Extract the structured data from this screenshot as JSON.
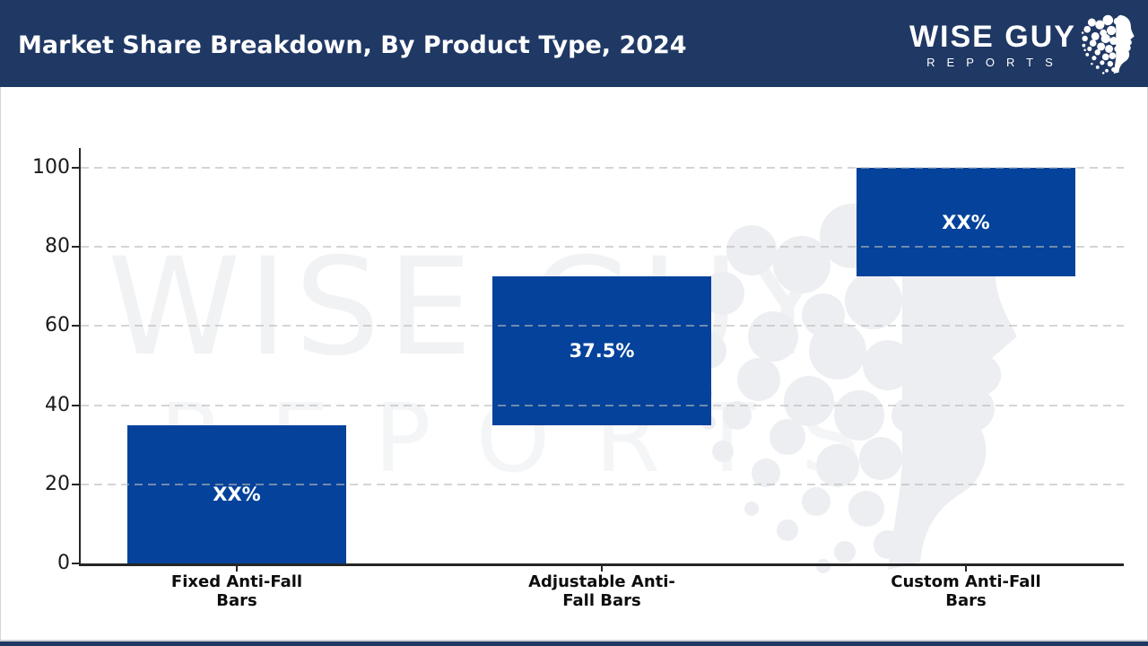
{
  "header": {
    "title": "Market Share Breakdown, By Product Type, 2024"
  },
  "brand": {
    "name": "WISE GUY",
    "sub": "REPORTS"
  },
  "icons": {
    "logo_face": "wiseguy-dot-matrix-face"
  },
  "watermark": {
    "line1": "WISE GUY",
    "line2": "REPORTS"
  },
  "colors": {
    "header_bg": "#1F3864",
    "footer_bg": "#1F3864",
    "bar": "#04429B",
    "watermark_text": "#F1F2F4",
    "axis": "#262626"
  },
  "chart_data": {
    "type": "bar",
    "variant": "waterfall-stacked-segments",
    "title": "Market Share Breakdown, By Product Type, 2024",
    "categories": [
      "Fixed Anti-Fall\nBars",
      "Adjustable Anti-\nFall Bars",
      "Custom Anti-Fall\nBars"
    ],
    "segments": [
      {
        "category": "Fixed Anti-Fall Bars",
        "start": 0,
        "end": 35,
        "value": 35,
        "value_label": "XX%"
      },
      {
        "category": "Adjustable Anti-Fall Bars",
        "start": 35,
        "end": 72.5,
        "value": 37.5,
        "value_label": "37.5%"
      },
      {
        "category": "Custom Anti-Fall Bars",
        "start": 72.5,
        "end": 100,
        "value": 27.5,
        "value_label": "XX%"
      }
    ],
    "xlabel": "",
    "ylabel": "",
    "ylim": [
      0,
      104
    ],
    "yticks": [
      0,
      20,
      40,
      60,
      80,
      100
    ],
    "grid": "horizontal-dashed",
    "legend": false,
    "bar_color": "#04429B",
    "value_label_color": "#FFFFFF"
  }
}
